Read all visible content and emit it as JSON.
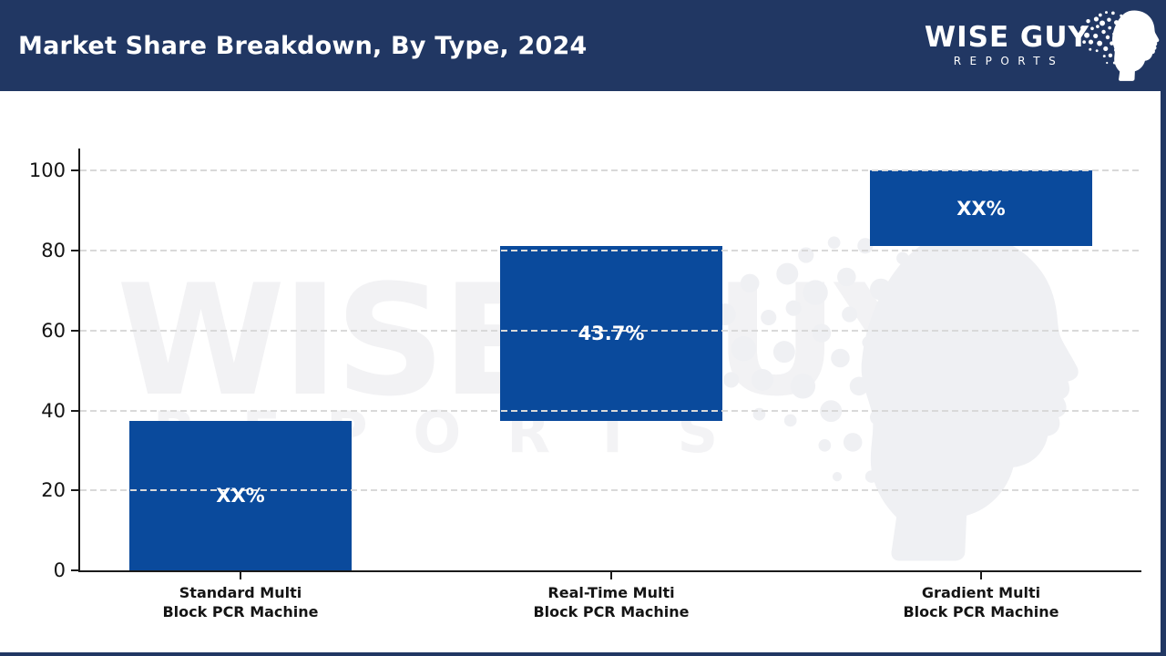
{
  "header": {
    "title": "Market Share Breakdown, By Type, 2024",
    "logo_line1": "WISE GUY",
    "logo_line2": "REPORTS"
  },
  "watermark": {
    "line1": "WISE GUY",
    "line2": "REPORTS"
  },
  "chart_data": {
    "type": "bar",
    "variant": "waterfall",
    "title": "Market Share Breakdown, By Type, 2024",
    "categories": [
      "Standard Multi Block PCR Machine",
      "Real-Time Multi Block PCR Machine",
      "Gradient Multi Block PCR Machine"
    ],
    "category_lines": [
      [
        "Standard Multi",
        "Block PCR Machine"
      ],
      [
        "Real-Time Multi",
        "Block PCR Machine"
      ],
      [
        "Gradient Multi",
        "Block PCR Machine"
      ]
    ],
    "bars": [
      {
        "category": "Standard Multi Block PCR Machine",
        "start": 0,
        "end": 37.5,
        "label": "XX%"
      },
      {
        "category": "Real-Time Multi Block PCR Machine",
        "start": 37.5,
        "end": 81.2,
        "label": "43.7%"
      },
      {
        "category": "Gradient Multi Block PCR Machine",
        "start": 81.2,
        "end": 100,
        "label": "XX%"
      }
    ],
    "yticks": [
      0,
      20,
      40,
      60,
      80,
      100
    ],
    "ylim": [
      0,
      105
    ],
    "xlabel": "",
    "ylabel": "",
    "grid": "horizontal-dashed",
    "legend": "none"
  },
  "colors": {
    "header_bg": "#213763",
    "bar": "#0a4a9c",
    "grid": "#d9d9d9",
    "axis": "#1a1a1a",
    "text_dark": "#141414",
    "bar_label": "#ffffff",
    "watermark": "#f2f2f4"
  }
}
